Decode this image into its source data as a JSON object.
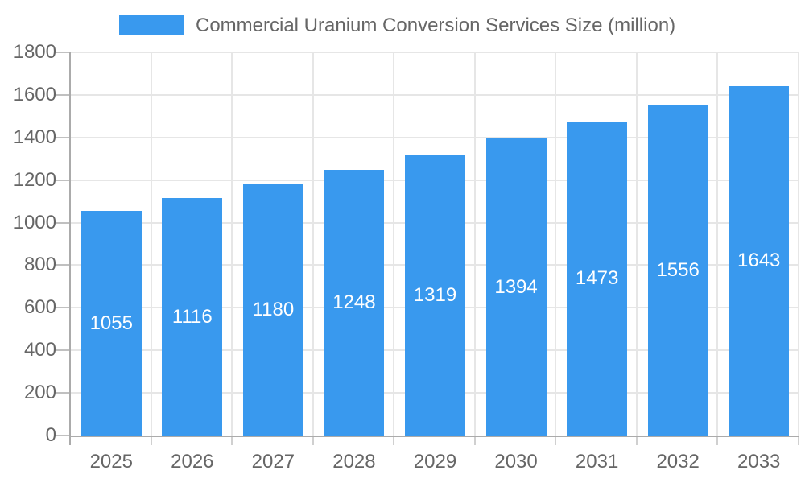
{
  "chart_data": {
    "type": "bar",
    "title": "Commercial Uranium Conversion Services Size (million)",
    "categories": [
      "2025",
      "2026",
      "2027",
      "2028",
      "2029",
      "2030",
      "2031",
      "2032",
      "2033"
    ],
    "values": [
      1055,
      1116,
      1180,
      1248,
      1319,
      1394,
      1473,
      1556,
      1643
    ],
    "series_name": "Commercial Uranium Conversion Services Size (million)",
    "xlabel": "",
    "ylabel": "",
    "ylim": [
      0,
      1800
    ],
    "yticks": [
      0,
      200,
      400,
      600,
      800,
      1000,
      1200,
      1400,
      1600,
      1800
    ],
    "grid": true,
    "legend_position": "top",
    "bar_color": "#3999EE",
    "value_label_color": "#ffffff",
    "text_color": "#666666",
    "gridline_color": "#e6e6e6",
    "axis_color": "#ababab",
    "background_color": "#ffffff"
  }
}
